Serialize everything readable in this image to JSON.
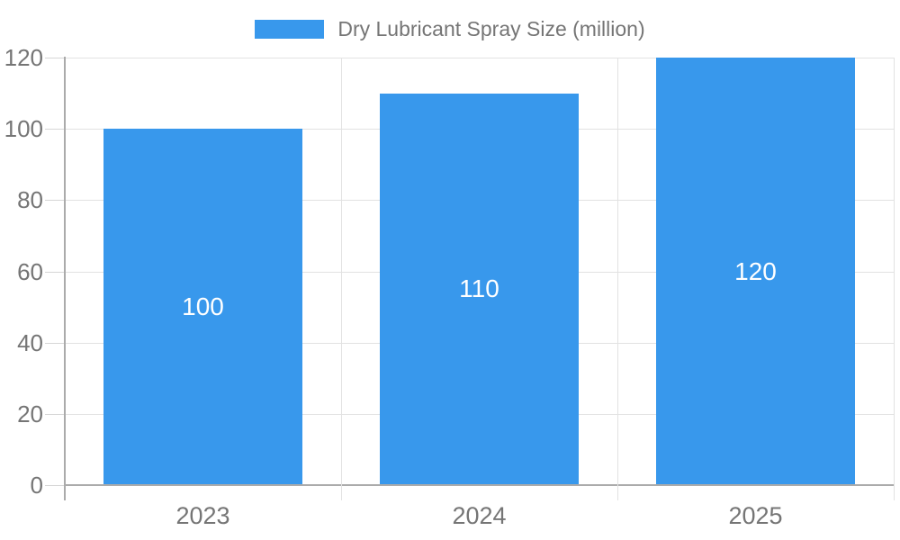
{
  "legend": {
    "label": "Dry Lubricant Spray Size (million)"
  },
  "chart_data": {
    "type": "bar",
    "title": "",
    "categories": [
      "2023",
      "2024",
      "2025"
    ],
    "values": [
      100,
      110,
      120
    ],
    "series_name": "Dry Lubricant Spray Size (million)",
    "bar_labels": [
      "100",
      "110",
      "120"
    ],
    "xlabel": "",
    "ylabel": "",
    "ylim": [
      0,
      120
    ],
    "yticks": [
      0,
      20,
      40,
      60,
      80,
      100,
      120
    ],
    "grid": true,
    "legend_position": "top"
  },
  "colors": {
    "bar": "#3898EC",
    "grid": "#E2E2E2",
    "axis": "#ABABAB",
    "tick_text": "#757575",
    "legend_text": "#757575",
    "bar_label_text": "#FFFFFF",
    "background": "#FFFFFF"
  }
}
